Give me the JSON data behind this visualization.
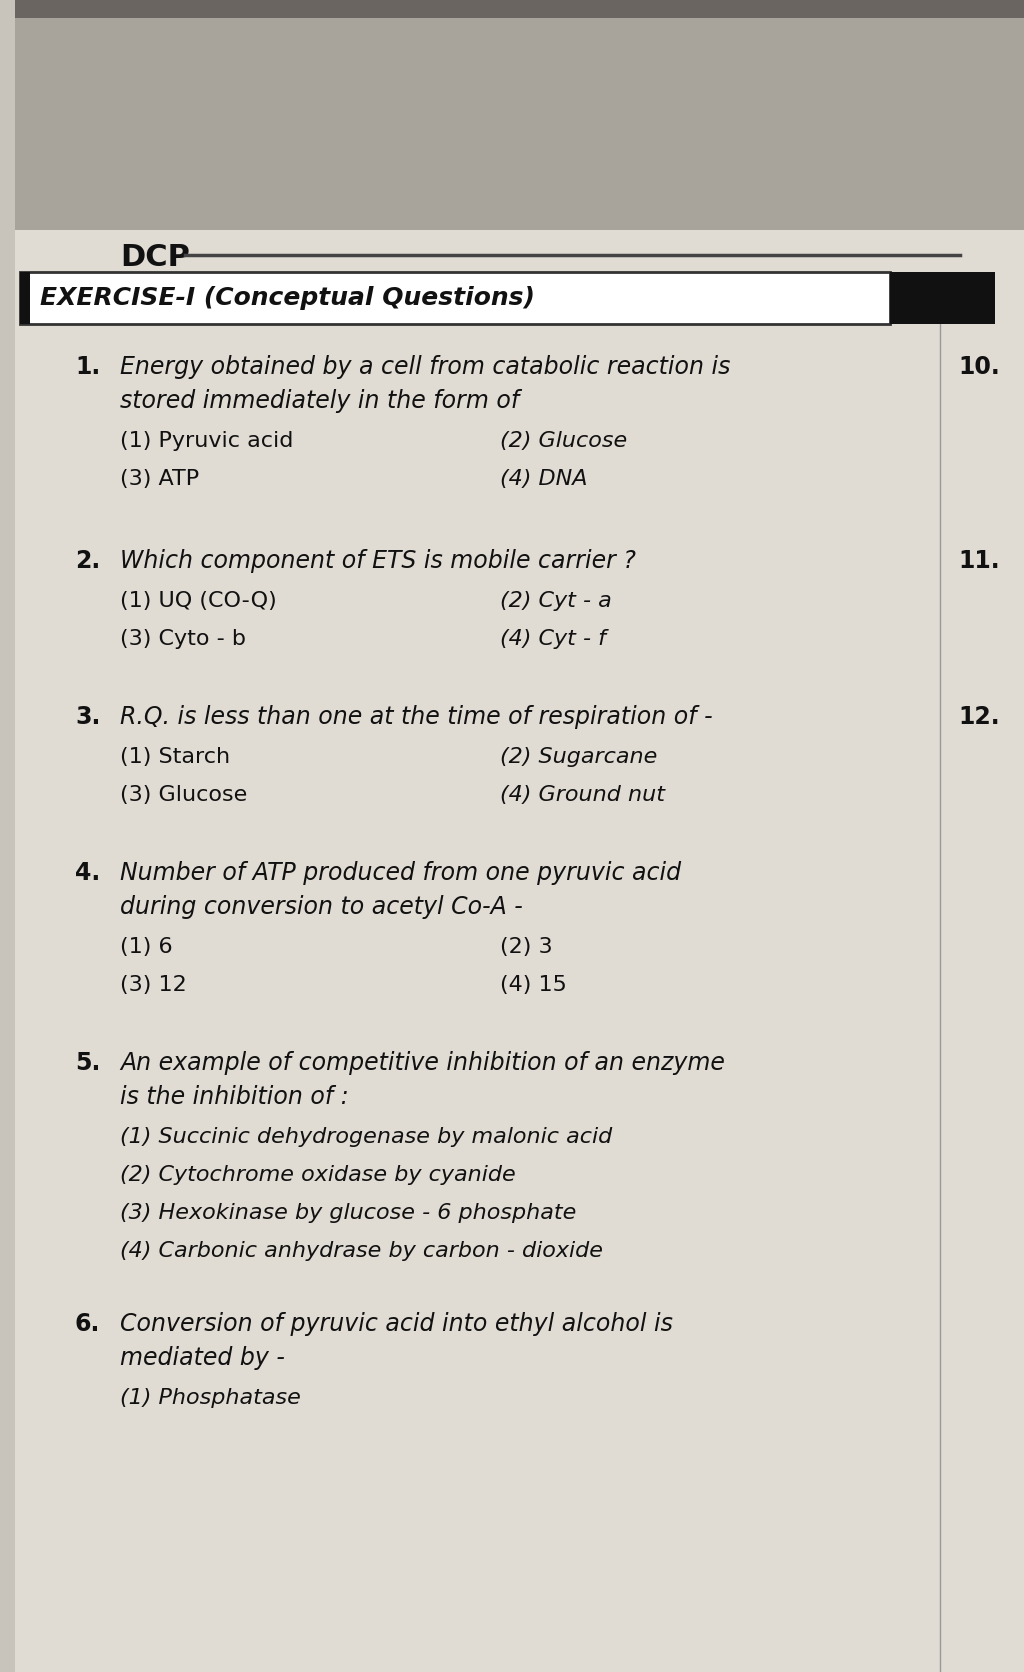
{
  "bg_color": "#c8c3bb",
  "page_bg": "#e0dbd3",
  "title_dcp": "DCP",
  "title_exercise": "EXERCISE-I (Conceptual Questions)",
  "right_col_nums": [
    "10.",
    "11.",
    "12."
  ],
  "questions": [
    {
      "num": "1.",
      "lines": [
        "Energy obtained by a cell from catabolic reaction is",
        "stored immediately in the form of"
      ],
      "options_2col": [
        [
          "(1) Pyruvic acid",
          "(2) Glucose"
        ],
        [
          "(3) ATP",
          "(4) DNA"
        ]
      ],
      "right_num": "10."
    },
    {
      "num": "2.",
      "lines": [
        "Which component of ETS is mobile carrier ?"
      ],
      "options_2col": [
        [
          "(1) UQ (CO-Q)",
          "(2) Cyt - a"
        ],
        [
          "(3) Cyto - b",
          "(4) Cyt - f"
        ]
      ],
      "right_num": "11."
    },
    {
      "num": "3.",
      "lines": [
        "R.Q. is less than one at the time of respiration of -"
      ],
      "options_2col": [
        [
          "(1) Starch",
          "(2) Sugarcane"
        ],
        [
          "(3) Glucose",
          "(4) Ground nut"
        ]
      ],
      "right_num": "12."
    },
    {
      "num": "4.",
      "lines": [
        "Number of ATP produced from one pyruvic acid",
        "during conversion to acetyl Co-A -"
      ],
      "options_2col": [
        [
          "(1) 6",
          "(2) 3"
        ],
        [
          "(3) 12",
          "(4) 15"
        ]
      ],
      "right_num": ""
    },
    {
      "num": "5.",
      "lines": [
        "An example of competitive inhibition of an enzyme",
        "is the inhibition of :"
      ],
      "options_list": [
        "(1) Succinic dehydrogenase by malonic acid",
        "(2) Cytochrome oxidase by cyanide",
        "(3) Hexokinase by glucose - 6 phosphate",
        "(4) Carbonic anhydrase by carbon - dioxide"
      ],
      "right_num": ""
    },
    {
      "num": "6.",
      "lines": [
        "Conversion of pyruvic acid into ethyl alcohol is",
        "mediated by -"
      ],
      "options_list": [
        "(1) Phosphatase"
      ],
      "right_num": ""
    }
  ]
}
